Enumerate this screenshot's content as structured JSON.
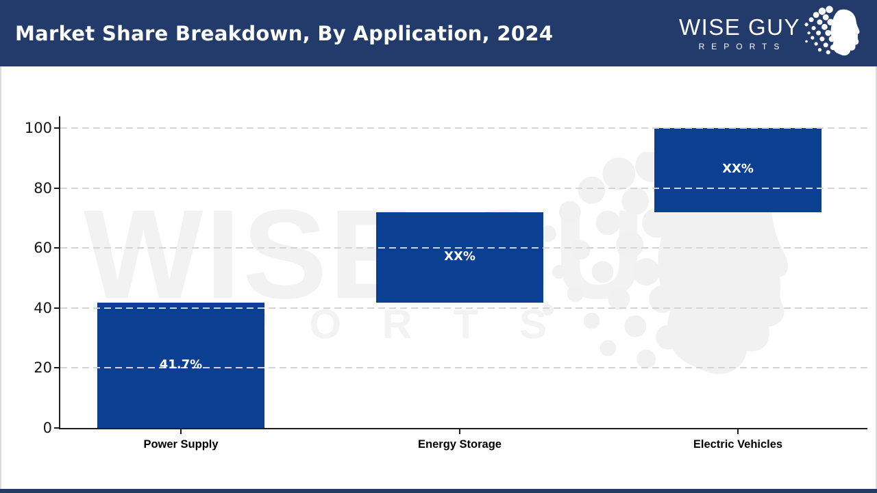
{
  "page": {
    "background": "#ffffff",
    "footer_color": "#233B6B",
    "edge_color": "#dcdcdc"
  },
  "header": {
    "background": "#233B6B",
    "title": "Market Share Breakdown, By Application, 2024",
    "logo": {
      "primary": "WISE GUY",
      "secondary": "REPORTS",
      "icon": "dotted-face-profile-icon"
    }
  },
  "watermark": {
    "primary": "WISE GUY",
    "secondary": "REPORTS"
  },
  "chart_data": {
    "type": "bar",
    "subtype": "floating-waterfall",
    "title": "Market Share Breakdown, By Application, 2024",
    "categories": [
      "Power Supply",
      "Energy Storage",
      "Electric Vehicles"
    ],
    "segments": [
      {
        "category": "Power Supply",
        "base": 0,
        "top": 41.7,
        "label": "41.7%"
      },
      {
        "category": "Energy Storage",
        "base": 41.7,
        "top": 72,
        "label": "XX%"
      },
      {
        "category": "Electric Vehicles",
        "base": 72,
        "top": 100,
        "label": "XX%"
      }
    ],
    "ylim": [
      0,
      100
    ],
    "yticks": [
      0,
      20,
      40,
      60,
      80,
      100
    ],
    "grid": {
      "axis": "y",
      "style": "dashed",
      "color": "#d4d4d4"
    },
    "bar_color": "#0B3F92",
    "bar_label_color": "#ffffff",
    "axis_color": "#1c1c1c",
    "tick_label_color": "#141414",
    "legend_position": "none",
    "xlabel": "",
    "ylabel": ""
  }
}
